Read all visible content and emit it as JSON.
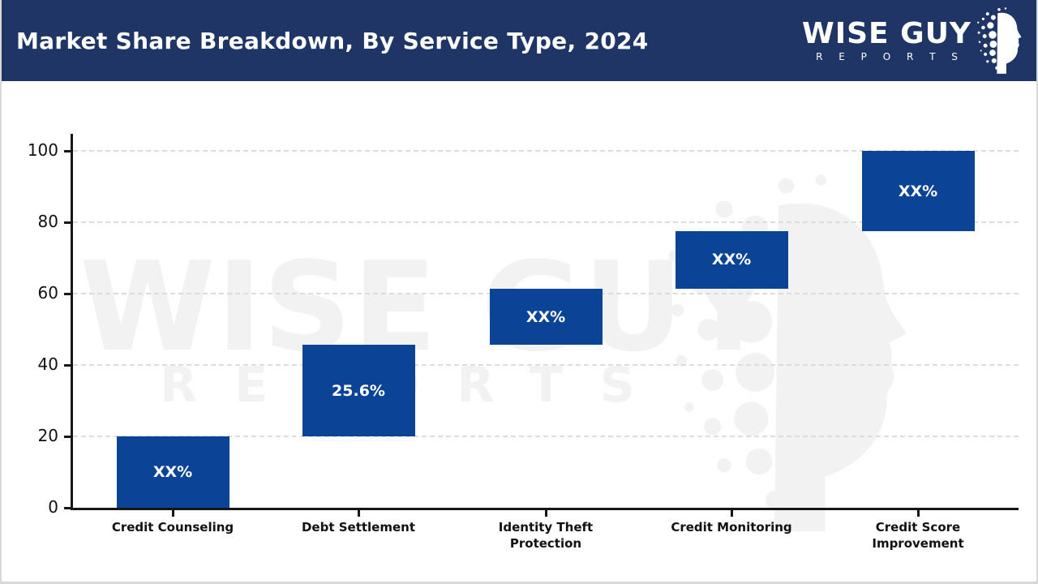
{
  "header": {
    "title": "Market Share Breakdown, By Service Type, 2024",
    "logo": {
      "name": "WISE GUY",
      "tagline": "R E P O R T S"
    }
  },
  "watermark": {
    "line1": "WISE GUY",
    "line2": "REPORTS"
  },
  "chart_data": {
    "type": "bar",
    "subtype": "waterfall",
    "title": "Market Share Breakdown, By Service Type, 2024",
    "xlabel": "",
    "ylabel": "",
    "ylim": [
      0,
      105
    ],
    "yticks": [
      0,
      20,
      40,
      60,
      80,
      100
    ],
    "grid": true,
    "legend": false,
    "categories": [
      "Credit Counseling",
      "Debt Settlement",
      "Identity Theft\nProtection",
      "Credit Monitoring",
      "Credit Score\nImprovement"
    ],
    "segments": [
      {
        "label": "XX%",
        "start": 0,
        "end": 20
      },
      {
        "label": "25.6%",
        "start": 20,
        "end": 45.6
      },
      {
        "label": "XX%",
        "start": 45.6,
        "end": 61.4
      },
      {
        "label": "XX%",
        "start": 61.4,
        "end": 77.5
      },
      {
        "label": "XX%",
        "start": 77.5,
        "end": 100
      }
    ]
  },
  "colors": {
    "header_bg": "#1f3566",
    "bar": "#0b4397",
    "watermark": "#f2f2f3",
    "grid": "#dcdcdc",
    "axis": "#161616",
    "bar_label": "#ffffff",
    "border": "#d8d8d8"
  }
}
